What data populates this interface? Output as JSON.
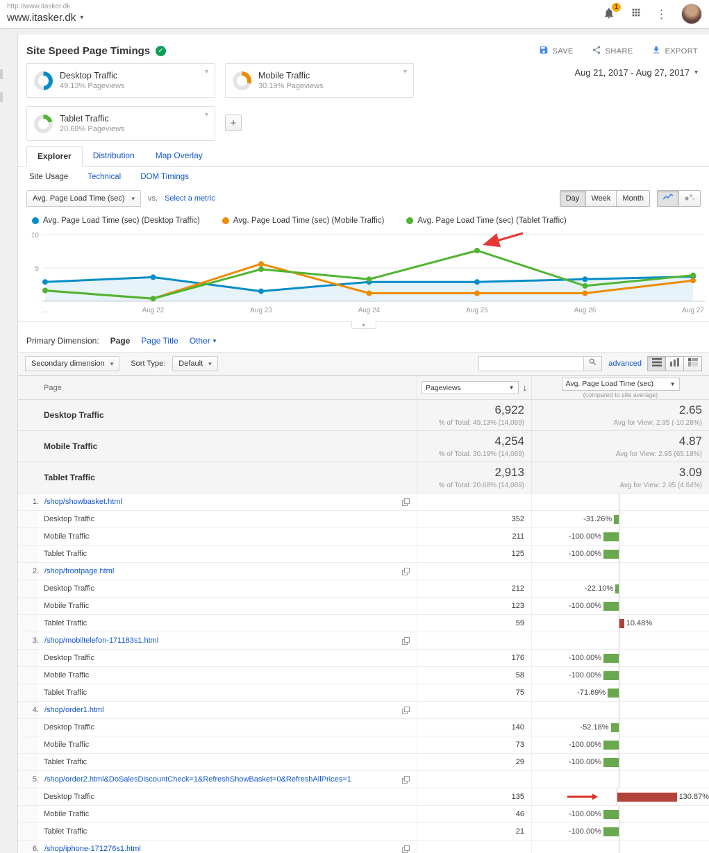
{
  "topbar": {
    "url": "http://www.itasker.dk",
    "account_name": "www.itasker.dk",
    "notification_badge": "1"
  },
  "report": {
    "title": "Site Speed Page Timings",
    "save_label": "SAVE",
    "share_label": "SHARE",
    "export_label": "EXPORT",
    "date_range": "Aug 21, 2017 - Aug 27, 2017",
    "add_segment_label": "+"
  },
  "segments": [
    {
      "name": "Desktop Traffic",
      "detail": "49.13% Pageviews",
      "color": "#058dc7",
      "pct": 49.13
    },
    {
      "name": "Mobile Traffic",
      "detail": "30.19% Pageviews",
      "color": "#ed8b00",
      "pct": 30.19
    },
    {
      "name": "Tablet Traffic",
      "detail": "20.68% Pageviews",
      "color": "#50b432",
      "pct": 20.68
    }
  ],
  "tabs": [
    {
      "label": "Explorer",
      "active": true
    },
    {
      "label": "Distribution",
      "active": false
    },
    {
      "label": "Map Overlay",
      "active": false
    }
  ],
  "subtabs": [
    {
      "label": "Site Usage",
      "active": true
    },
    {
      "label": "Technical",
      "active": false
    },
    {
      "label": "DOM Timings",
      "active": false
    }
  ],
  "metric_bar": {
    "metric_select": "Avg. Page Load Time (sec)",
    "vs_label": "vs.",
    "select_metric_link": "Select a metric",
    "granularity": [
      "Day",
      "Week",
      "Month"
    ],
    "granularity_active": "Day"
  },
  "legend": [
    {
      "label": "Avg. Page Load Time (sec) (Desktop Traffic)",
      "color": "#058dc7"
    },
    {
      "label": "Avg. Page Load Time (sec) (Mobile Traffic)",
      "color": "#ed8b00"
    },
    {
      "label": "Avg. Page Load Time (sec) (Tablet Traffic)",
      "color": "#50b432"
    }
  ],
  "chart_data": {
    "type": "line",
    "title": "Avg. Page Load Time (sec) by day",
    "x": [
      "...",
      "Aug 22",
      "Aug 23",
      "Aug 24",
      "Aug 25",
      "Aug 26",
      "Aug 27"
    ],
    "ylim": [
      0,
      10
    ],
    "yticks": [
      5,
      10
    ],
    "series": [
      {
        "name": "Avg. Page Load Time (sec) (Desktop Traffic)",
        "color": "#058dc7",
        "fill": true,
        "values": [
          2.9,
          3.6,
          1.5,
          2.9,
          2.9,
          3.3,
          3.7
        ]
      },
      {
        "name": "Avg. Page Load Time (sec) (Mobile Traffic)",
        "color": "#ed8b00",
        "fill": false,
        "values": [
          1.6,
          0.4,
          5.6,
          1.2,
          1.2,
          1.2,
          3.1
        ]
      },
      {
        "name": "Avg. Page Load Time (sec) (Tablet Traffic)",
        "color": "#50b432",
        "fill": false,
        "values": [
          1.6,
          0.4,
          4.8,
          3.3,
          7.6,
          2.3,
          3.9
        ]
      }
    ],
    "annotations": [
      {
        "type": "arrow",
        "color": "#e53935",
        "target": "Tablet Traffic peak on Aug 25"
      },
      {
        "type": "arrow",
        "color": "#e53935",
        "target": "Row 5 Desktop Traffic 130.87% bar"
      }
    ],
    "legend_position": "top"
  },
  "dimension_bar": {
    "label": "Primary Dimension:",
    "options": [
      {
        "label": "Page",
        "active": true
      },
      {
        "label": "Page Title",
        "active": false
      },
      {
        "label": "Other",
        "active": false,
        "caret": true
      }
    ]
  },
  "controls": {
    "secondary_dimension_label": "Secondary dimension",
    "sort_type_label": "Sort Type:",
    "sort_type_value": "Default",
    "advanced_link": "advanced"
  },
  "table": {
    "columns": {
      "page": "Page",
      "pageviews": "Pageviews",
      "metric": "Avg. Page Load Time (sec)",
      "metric_note": "(compared to site average)"
    },
    "summary": [
      {
        "name": "Desktop Traffic",
        "pageviews": "6,922",
        "pv_note": "% of Total: 49.13% (14,089)",
        "value": "2.65",
        "value_note": "Avg for View: 2.95 (-10.28%)"
      },
      {
        "name": "Mobile Traffic",
        "pageviews": "4,254",
        "pv_note": "% of Total: 30.19% (14,089)",
        "value": "4.87",
        "value_note": "Avg for View: 2.95 (65.18%)"
      },
      {
        "name": "Tablet Traffic",
        "pageviews": "2,913",
        "pv_note": "% of Total: 20.68% (14,089)",
        "value": "3.09",
        "value_note": "Avg for View: 2.95 (4.64%)"
      }
    ],
    "rows": [
      {
        "index": "1.",
        "page": "/shop/showbasket.html",
        "segments": [
          {
            "name": "Desktop Traffic",
            "pageviews": "352",
            "pct": -31.26,
            "label": "-31.26%"
          },
          {
            "name": "Mobile Traffic",
            "pageviews": "211",
            "pct": -100.0,
            "label": "-100.00%"
          },
          {
            "name": "Tablet Traffic",
            "pageviews": "125",
            "pct": -100.0,
            "label": "-100.00%"
          }
        ]
      },
      {
        "index": "2.",
        "page": "/shop/frontpage.html",
        "segments": [
          {
            "name": "Desktop Traffic",
            "pageviews": "212",
            "pct": -22.1,
            "label": "-22.10%"
          },
          {
            "name": "Mobile Traffic",
            "pageviews": "123",
            "pct": -100.0,
            "label": "-100.00%"
          },
          {
            "name": "Tablet Traffic",
            "pageviews": "59",
            "pct": 10.48,
            "label": "10.48%"
          }
        ]
      },
      {
        "index": "3.",
        "page": "/shop/mobiltelefon-171183s1.html",
        "segments": [
          {
            "name": "Desktop Traffic",
            "pageviews": "176",
            "pct": -100.0,
            "label": "-100.00%"
          },
          {
            "name": "Mobile Traffic",
            "pageviews": "58",
            "pct": -100.0,
            "label": "-100.00%"
          },
          {
            "name": "Tablet Traffic",
            "pageviews": "75",
            "pct": -71.69,
            "label": "-71.69%"
          }
        ]
      },
      {
        "index": "4.",
        "page": "/shop/order1.html",
        "segments": [
          {
            "name": "Desktop Traffic",
            "pageviews": "140",
            "pct": -52.18,
            "label": "-52.18%"
          },
          {
            "name": "Mobile Traffic",
            "pageviews": "73",
            "pct": -100.0,
            "label": "-100.00%"
          },
          {
            "name": "Tablet Traffic",
            "pageviews": "29",
            "pct": -100.0,
            "label": "-100.00%"
          }
        ]
      },
      {
        "index": "5.",
        "page": "/shop/order2.html&DoSalesDiscountCheck=1&RefreshShowBasket=0&RefreshAllPrices=1",
        "segments": [
          {
            "name": "Desktop Traffic",
            "pageviews": "135",
            "pct": 130.87,
            "label": "130.87%",
            "arrow": true
          },
          {
            "name": "Mobile Traffic",
            "pageviews": "46",
            "pct": -100.0,
            "label": "-100.00%"
          },
          {
            "name": "Tablet Traffic",
            "pageviews": "21",
            "pct": -100.0,
            "label": "-100.00%"
          }
        ]
      },
      {
        "index": "6.",
        "page": "/shop/iphone-171276s1.html",
        "segments": []
      }
    ]
  }
}
